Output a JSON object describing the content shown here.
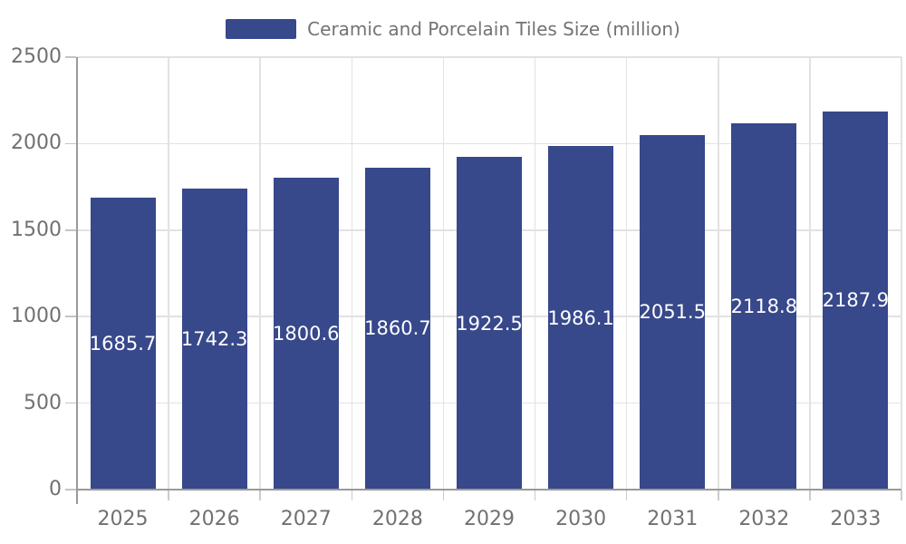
{
  "chart_data": {
    "type": "bar",
    "title": "Ceramic and Porcelain Tiles Size (million)",
    "series_name": "Ceramic and Porcelain Tiles Size (million)",
    "categories": [
      "2025",
      "2026",
      "2027",
      "2028",
      "2029",
      "2030",
      "2031",
      "2032",
      "2033"
    ],
    "values": [
      1685.7,
      1742.3,
      1800.6,
      1860.7,
      1922.5,
      1986.1,
      2051.5,
      2118.8,
      2187.9
    ],
    "xlabel": "",
    "ylabel": "",
    "ylim": [
      0,
      2500
    ],
    "yticks": [
      0,
      500,
      1000,
      1500,
      2000,
      2500
    ],
    "grid": true,
    "legend_position": "top",
    "value_label_position": "inside-center",
    "colors": {
      "bar": "#37488B",
      "value_label": "#FFFFFF",
      "axis_line": "#9A9A9A",
      "gridline": "#E2E2E2",
      "tick": "#C4C4C4",
      "axis_text": "#717171",
      "legend_text": "#737373",
      "background": "#FFFFFF"
    }
  }
}
